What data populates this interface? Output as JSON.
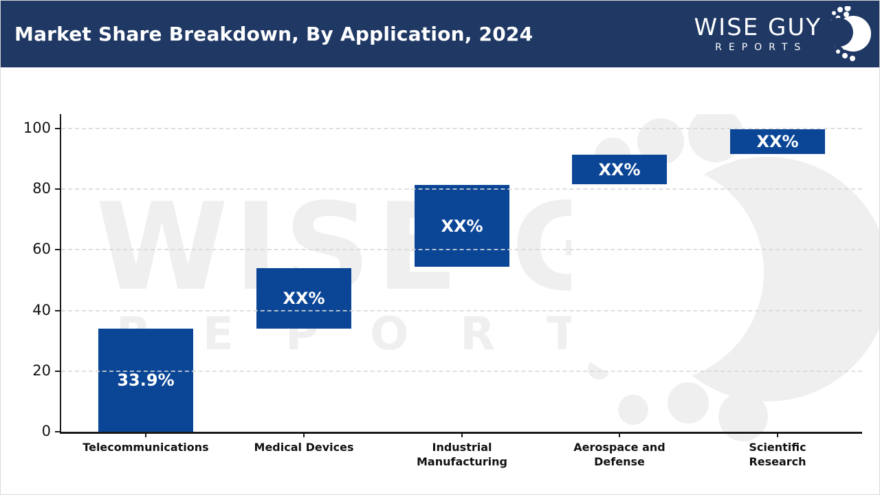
{
  "header": {
    "title": "Market Share Breakdown, By Application, 2024",
    "logo": {
      "line1": "WISE GUY",
      "line2": "REPORTS"
    }
  },
  "watermark": {
    "line1": "WISE GUY",
    "line2": "R E P O R T S"
  },
  "chart_data": {
    "type": "bar",
    "subtype": "floating-waterfall-segments",
    "title": "Market Share Breakdown, By Application, 2024",
    "categories": [
      "Telecommunications",
      "Medical Devices",
      "Industrial\nManufacturing",
      "Aerospace and\nDefense",
      "Scientific\nResearch"
    ],
    "segments": [
      {
        "category": "Telecommunications",
        "start": 0,
        "end": 34.0,
        "label": "33.9%"
      },
      {
        "category": "Medical Devices",
        "start": 34.0,
        "end": 54.0,
        "label": "XX%"
      },
      {
        "category": "Industrial Manufacturing",
        "start": 54.4,
        "end": 81.4,
        "label": "XX%"
      },
      {
        "category": "Aerospace and Defense",
        "start": 81.6,
        "end": 91.4,
        "label": "XX%"
      },
      {
        "category": "Scientific Research",
        "start": 91.5,
        "end": 99.8,
        "label": "XX%"
      }
    ],
    "yticks": [
      0,
      20,
      40,
      60,
      80,
      100
    ],
    "ylim": [
      0,
      104.8
    ],
    "xlabel": "",
    "ylabel": "",
    "grid": true,
    "legend": false,
    "colors": {
      "bar": "#0a4596",
      "bar_label": "#ffffff",
      "grid": "#d7d7d7",
      "axis": "#1a1a1a",
      "header_bg": "#1f3864",
      "header_text": "#ffffff",
      "watermark": "#efefef"
    }
  }
}
